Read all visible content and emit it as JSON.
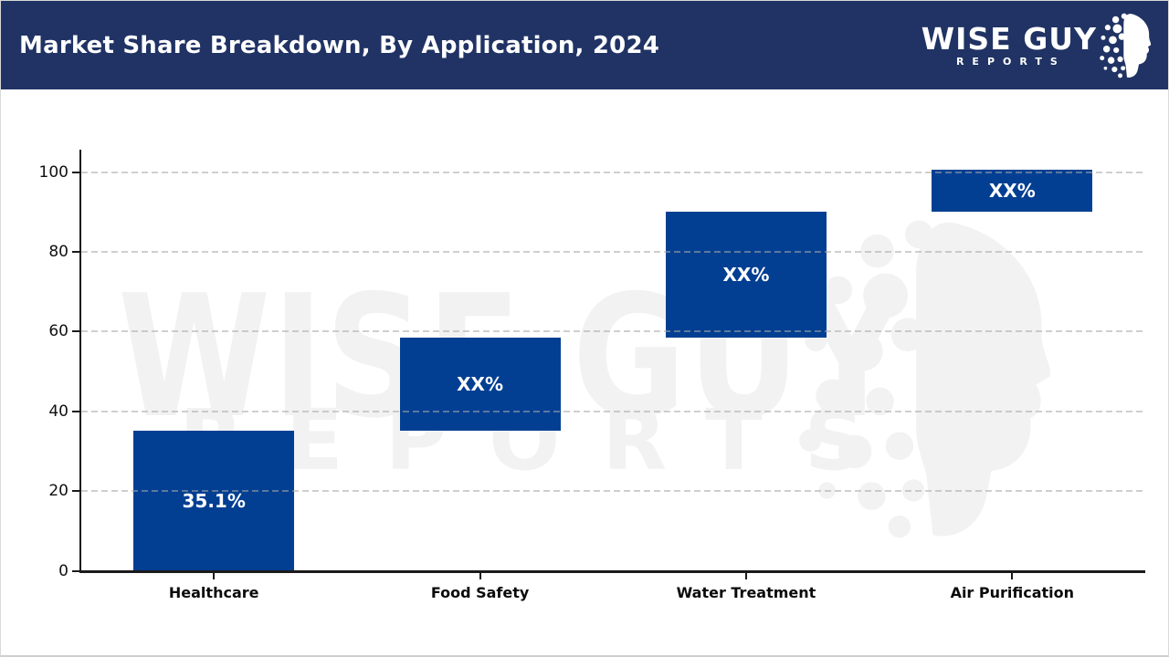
{
  "header": {
    "title": "Market Share Breakdown, By Application, 2024",
    "logo": {
      "line1": "WISE GUY",
      "line2": "REPORTS"
    }
  },
  "watermark": {
    "line1": "WISE GUY",
    "line2": "REPORTS"
  },
  "chart_data": {
    "type": "bar",
    "subtype": "waterfall",
    "title": "Market Share Breakdown, By Application, 2024",
    "categories": [
      "Healthcare",
      "Food Safety",
      "Water Treatment",
      "Air Purification"
    ],
    "segments": [
      {
        "category": "Healthcare",
        "start": 0,
        "end": 35.1,
        "label": "35.1%"
      },
      {
        "category": "Food Safety",
        "start": 35.1,
        "end": 58.5,
        "label": "XX%"
      },
      {
        "category": "Water Treatment",
        "start": 58.5,
        "end": 90.1,
        "label": "XX%"
      },
      {
        "category": "Air Purification",
        "start": 90.1,
        "end": 100.5,
        "label": "XX%"
      }
    ],
    "xlabel": "",
    "ylabel": "",
    "ylim": [
      0,
      105.5
    ],
    "yticks": [
      0,
      20,
      40,
      60,
      80,
      100
    ],
    "grid": "horizontal-dashed-above-bars",
    "legend": "none"
  },
  "colors": {
    "header_bg": "#203364",
    "bar_fill": "#023f92",
    "bar_label": "#ffffff",
    "axis": "#1a1a1a",
    "tick_text": "#111111",
    "watermark": "#f2f2f2",
    "background": "#ffffff"
  }
}
